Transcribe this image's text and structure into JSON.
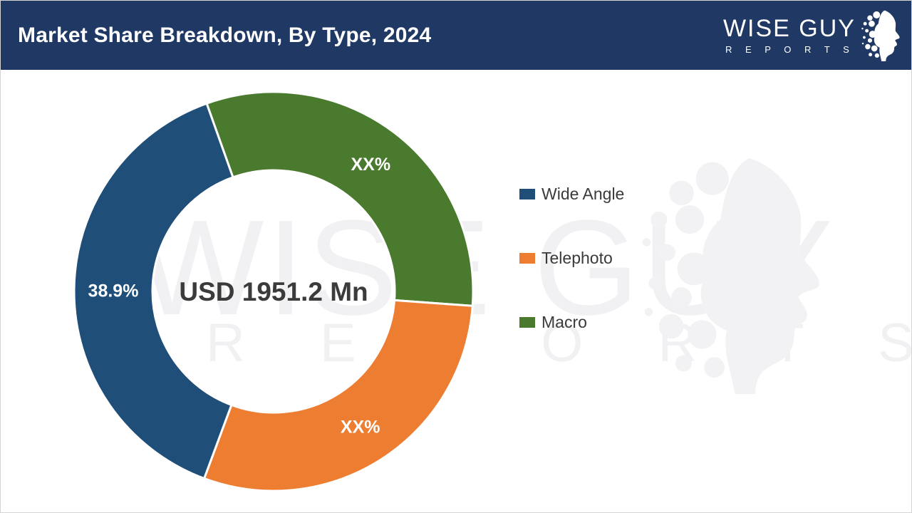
{
  "header": {
    "title": "Market Share Breakdown, By Type, 2024",
    "bg_color": "#1F3864",
    "logo": {
      "brand": "WISE GUY",
      "sub": "R E P O R T S"
    }
  },
  "watermark": {
    "line1": "WISE GUY",
    "line2": "R E P O R T S"
  },
  "chart_data": {
    "type": "pie",
    "subtype": "donut",
    "title": "Market Share Breakdown, By Type, 2024",
    "center_label": "USD 1951.2 Mn",
    "start_angle_deg": -19.6,
    "outer_radius": 280,
    "inner_radius": 170,
    "label_radius": 225,
    "segment_gap_color": "#ffffff",
    "segments_clockwise": [
      {
        "name": "Macro",
        "value_pct": 31.6,
        "data_label": "XX%",
        "color": "#4A7A2E"
      },
      {
        "name": "Telephoto",
        "value_pct": 29.5,
        "data_label": "XX%",
        "color": "#ED7D31"
      },
      {
        "name": "Wide Angle",
        "value_pct": 38.9,
        "data_label": "38.9%",
        "color": "#1F4E79"
      }
    ],
    "legend": {
      "position": "right",
      "items": [
        {
          "label": "Wide Angle",
          "color": "#1F4E79"
        },
        {
          "label": "Telephoto",
          "color": "#ED7D31"
        },
        {
          "label": "Macro",
          "color": "#4A7A2E"
        }
      ]
    }
  }
}
